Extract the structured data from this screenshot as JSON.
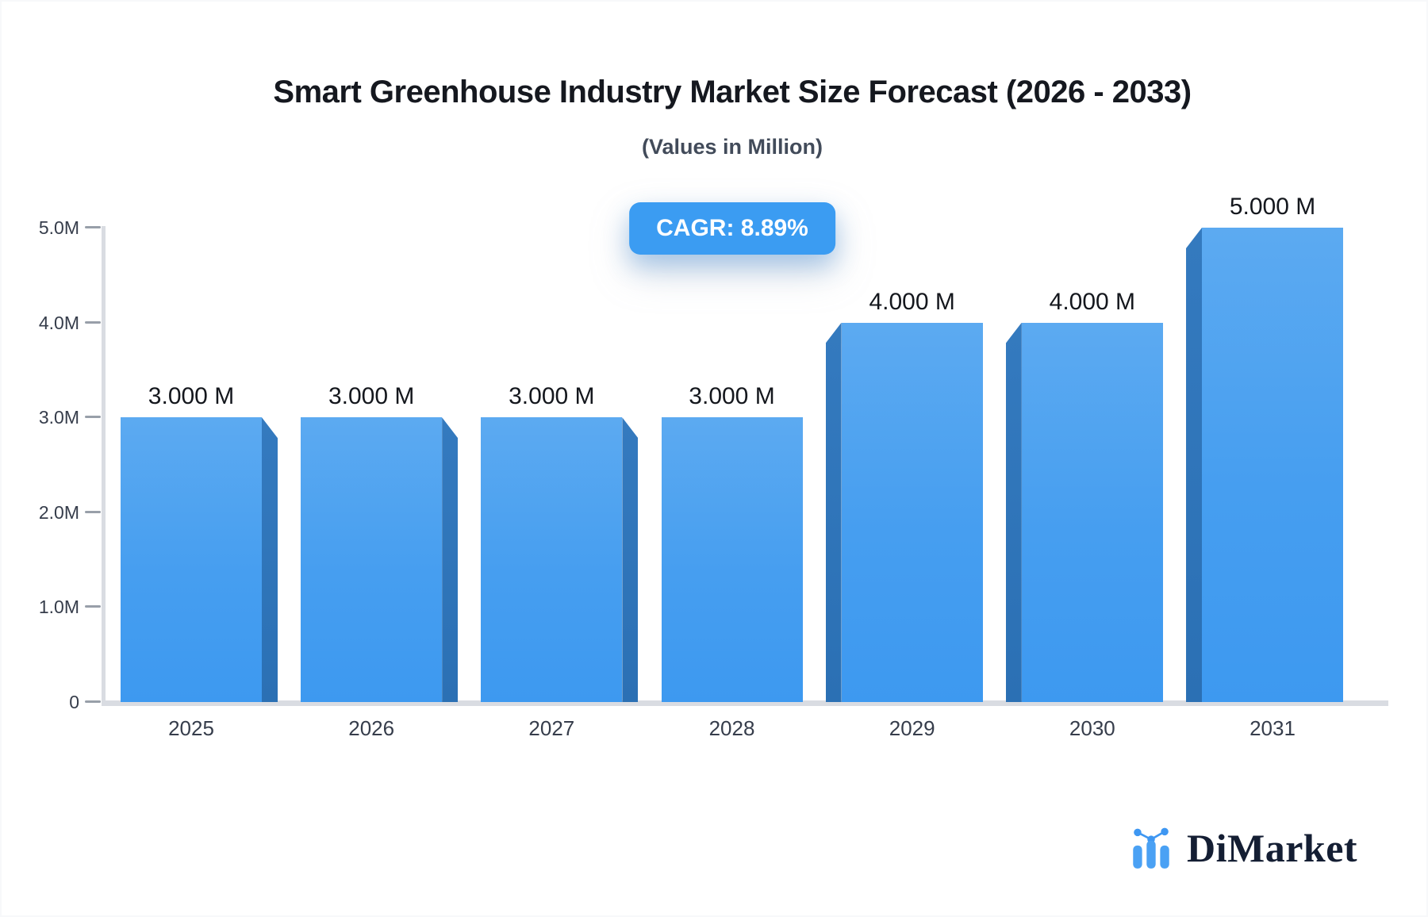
{
  "header": {
    "title": "Smart Greenhouse Industry Market Size Forecast (2026 - 2033)",
    "subtitle": "(Values in Million)"
  },
  "badge": {
    "label": "CAGR: 8.89%",
    "color": "#3b9cf2"
  },
  "chart_data": {
    "type": "bar",
    "title": "Smart Greenhouse Industry Market Size Forecast (2026 - 2033)",
    "subtitle": "(Values in Million)",
    "categories": [
      "2025",
      "2026",
      "2027",
      "2028",
      "2029",
      "2030",
      "2031"
    ],
    "values": [
      3000000,
      3000000,
      3000000,
      3000000,
      4000000,
      4000000,
      5000000
    ],
    "value_labels": [
      "3.000 M",
      "3.000 M",
      "3.000 M",
      "3.000 M",
      "4.000 M",
      "4.000 M",
      "5.000 M"
    ],
    "y_ticks": [
      "5.0M",
      "4.0M",
      "3.0M",
      "2.0M",
      "1.0M",
      "0"
    ],
    "y_tick_values": [
      5000000,
      4000000,
      3000000,
      2000000,
      1000000,
      0
    ],
    "ylim": [
      0,
      5000000
    ],
    "grid": false,
    "legend": "none",
    "cagr_label": "CAGR: 8.89%",
    "bar_color_top": "#5caaf1",
    "bar_color_bottom": "#3d99f0",
    "bar_side_color": "#2e76b8",
    "axis_color": "#d9dce2"
  },
  "footer": {
    "logo_text": "DiMarket",
    "logo_icon": "bar-chart-logo-icon",
    "logo_accent": "#4aa1f4",
    "logo_text_color": "#141e33"
  }
}
